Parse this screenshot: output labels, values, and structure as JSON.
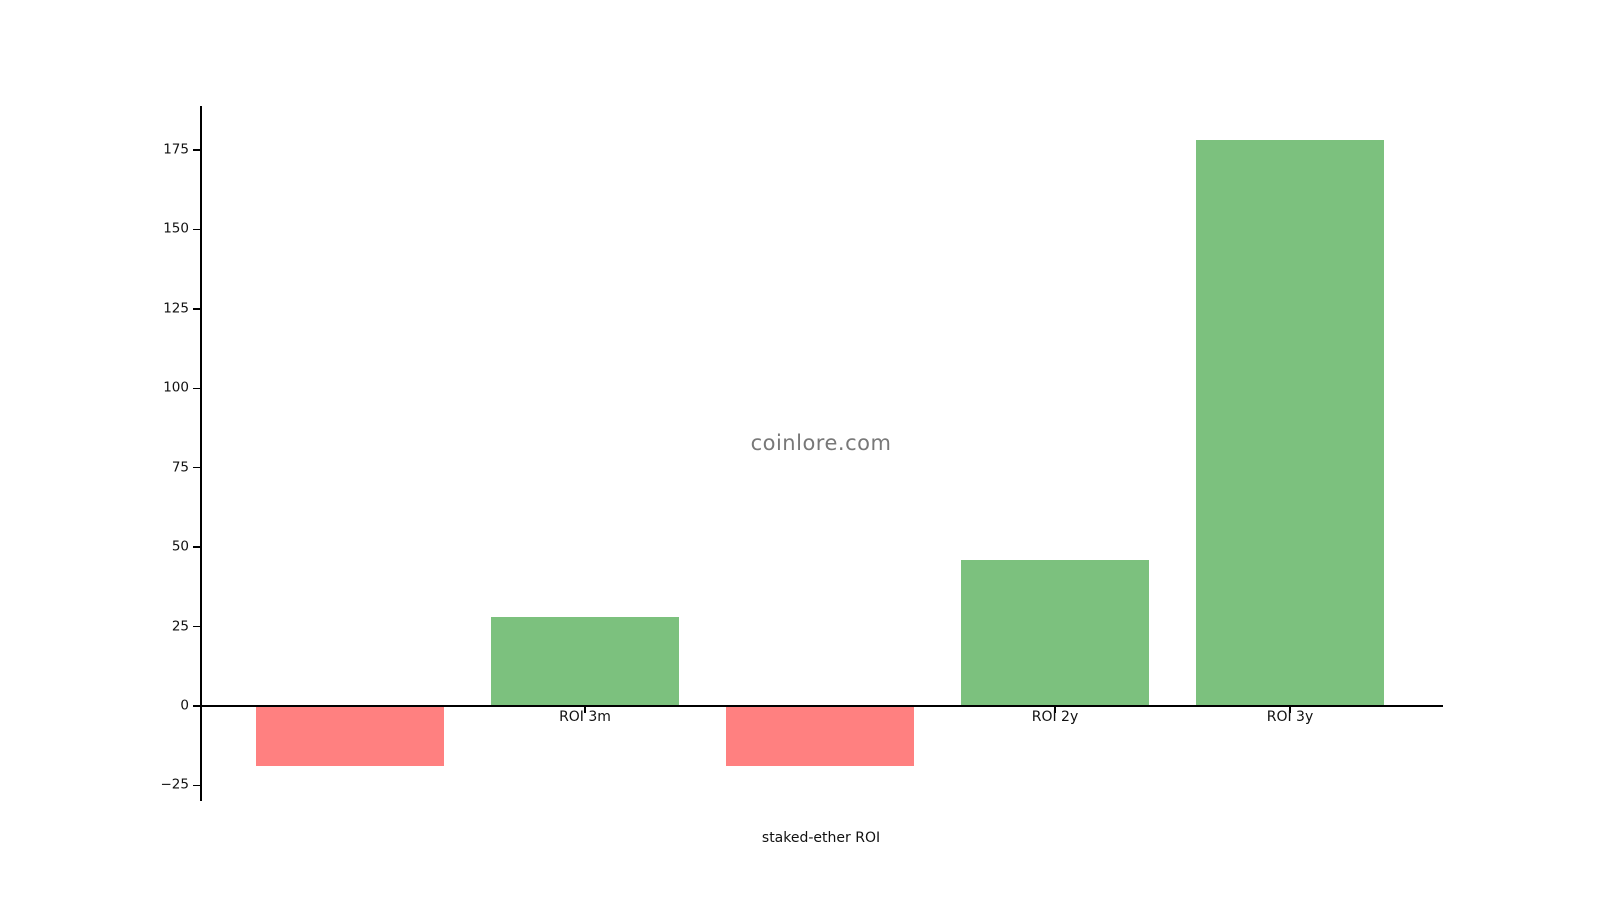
{
  "watermark": {
    "text": "coinlore.com",
    "color": "#787878"
  },
  "chart_data": {
    "type": "bar",
    "title": "",
    "xlabel": "staked-ether ROI",
    "ylabel": "",
    "bars": [
      {
        "label": "",
        "value": -19
      },
      {
        "label": "ROI 3m",
        "value": 28
      },
      {
        "label": "",
        "value": -19
      },
      {
        "label": "ROI 2y",
        "value": 46
      },
      {
        "label": "ROI 3y",
        "value": 178
      }
    ],
    "positive_color": "#7cc17e",
    "negative_color": "#ff8080",
    "y_ticks": [
      -25,
      0,
      25,
      50,
      75,
      100,
      125,
      150,
      175
    ],
    "ylim": [
      -29.6,
      188.9
    ],
    "grid": false,
    "legend": "none",
    "background": "#ffffff",
    "axis_color": "#000000"
  }
}
